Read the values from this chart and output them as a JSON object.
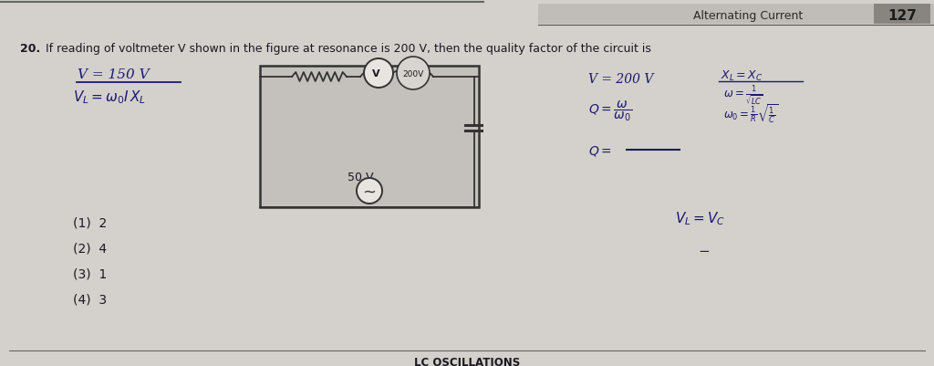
{
  "background_color": "#ccc8c4",
  "page_bg": "#d8d4cf",
  "header_text": "Alternating Current",
  "header_number": "127",
  "header_line_color": "#555555",
  "question_number": "20.",
  "question_text": "If reading of voltmeter V shown in the figure at resonance is 200 V, then the quality factor of the circuit is",
  "text_color": "#1a1820",
  "blue_color": "#1a1a6e",
  "options": [
    "(1)  2",
    "(2)  4",
    "(3)  1",
    "(4)  3"
  ],
  "circuit_bg": "#bab6b2",
  "circuit_border": "#333333"
}
